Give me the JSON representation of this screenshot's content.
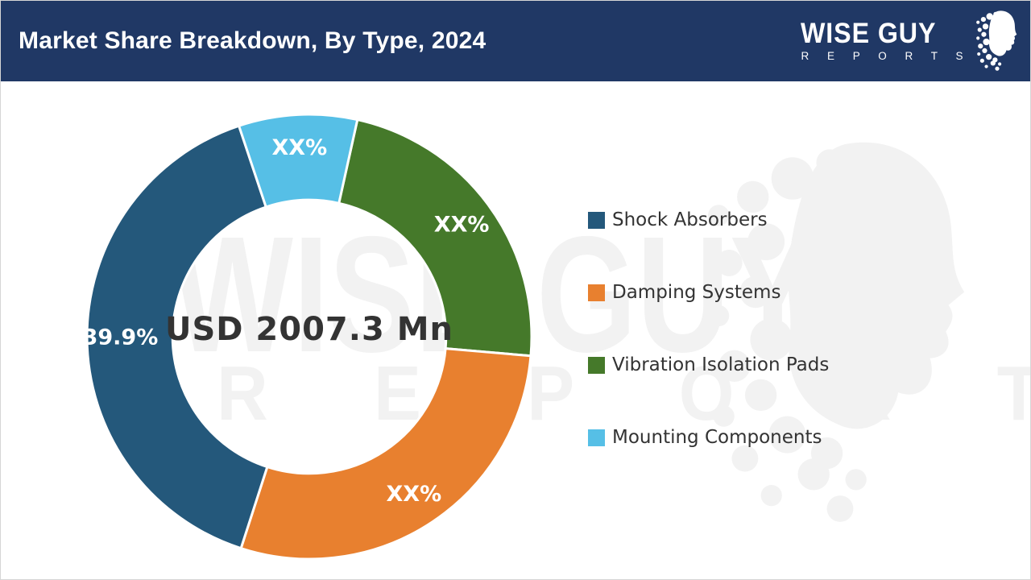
{
  "header": {
    "title": "Market Share Breakdown, By Type, 2024",
    "bg_color": "#203865",
    "logo": {
      "line1": "WISE GUY",
      "line2": "R E P O R T S",
      "face_icon": "dotted-face-profile"
    }
  },
  "watermark": {
    "line1": "WISE GUY",
    "line2": "R E P O R T S",
    "color": "#f2f2f2"
  },
  "chart_data": {
    "type": "pie",
    "subtype": "donut",
    "title": "Market Share Breakdown, By Type, 2024",
    "center_label": "USD 2007.3 Mn",
    "start_angle_deg": 12.5,
    "inner_radius_ratio": 0.615,
    "label_radius_ratio": 0.85,
    "legend_position": "right",
    "segments": [
      {
        "name": "Shock Absorbers",
        "label": "39.9%",
        "value": 39.9,
        "color": "#24587b"
      },
      {
        "name": "Damping Systems",
        "label": "XX%",
        "value": 28.6,
        "color": "#e8802f"
      },
      {
        "name": "Vibration Isolation Pads",
        "label": "XX%",
        "value": 22.9,
        "color": "#45792a"
      },
      {
        "name": "Mounting Components",
        "label": "XX%",
        "value": 8.6,
        "color": "#56bfe6"
      }
    ],
    "draw_order": [
      "Vibration Isolation Pads",
      "Damping Systems",
      "Shock Absorbers",
      "Mounting Components"
    ]
  },
  "legend": {
    "items": [
      {
        "label": "Shock Absorbers",
        "color": "#24587b"
      },
      {
        "label": "Damping Systems",
        "color": "#e8802f"
      },
      {
        "label": "Vibration Isolation Pads",
        "color": "#45792a"
      },
      {
        "label": "Mounting Components",
        "color": "#56bfe6"
      }
    ]
  }
}
